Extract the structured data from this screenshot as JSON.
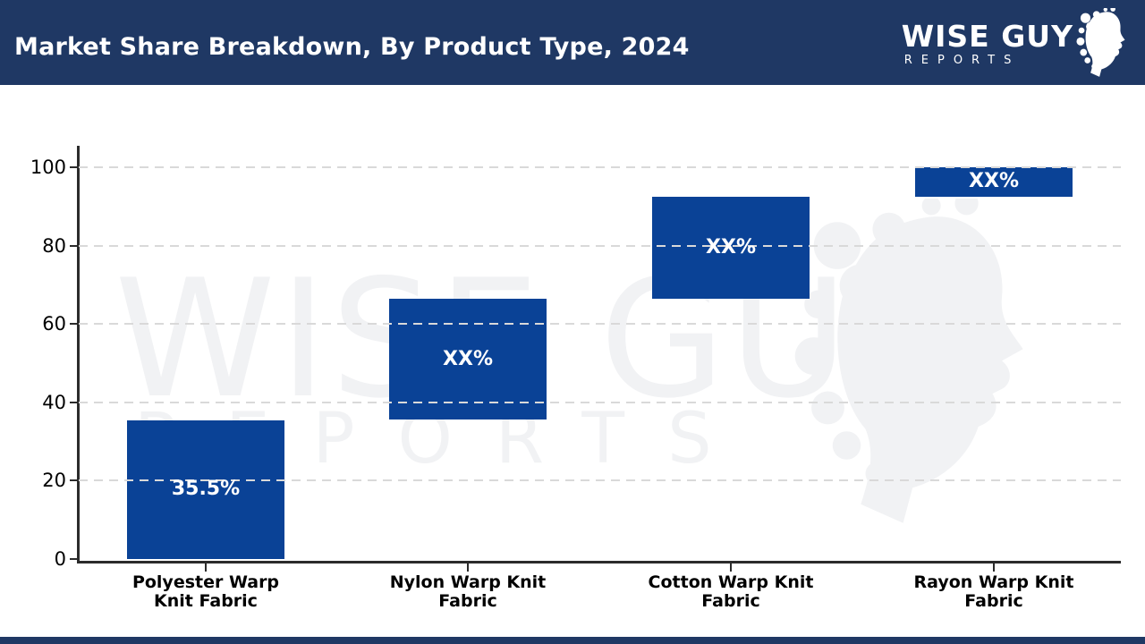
{
  "header": {
    "title": "Market Share Breakdown, By Product Type, 2024",
    "logo": {
      "line1": "WISE GUY",
      "line2": "REPORTS"
    }
  },
  "watermark": {
    "line1": "WISE GUY",
    "line2": "REPORTS"
  },
  "chart_data": {
    "type": "bar",
    "subtype": "floating-waterfall",
    "title": "Market Share Breakdown, By Product Type, 2024",
    "categories": [
      "Polyester Warp Knit Fabric",
      "Nylon Warp Knit Fabric",
      "Cotton Warp Knit Fabric",
      "Rayon Warp Knit Fabric"
    ],
    "category_label_lines": [
      [
        "Polyester Warp",
        "Knit Fabric"
      ],
      [
        "Nylon Warp Knit",
        "Fabric"
      ],
      [
        "Cotton Warp Knit",
        "Fabric"
      ],
      [
        "Rayon Warp Knit",
        "Fabric"
      ]
    ],
    "bars": [
      {
        "category": "Polyester Warp Knit Fabric",
        "label": "35.5%",
        "start": 0,
        "end": 35.5
      },
      {
        "category": "Nylon Warp Knit Fabric",
        "label": "XX%",
        "start": 35.5,
        "end": 66.5
      },
      {
        "category": "Cotton Warp Knit Fabric",
        "label": "XX%",
        "start": 66.5,
        "end": 92.5
      },
      {
        "category": "Rayon Warp Knit Fabric",
        "label": "XX%",
        "start": 92.5,
        "end": 100
      }
    ],
    "yticks": [
      0,
      20,
      40,
      60,
      80,
      100
    ],
    "ylim": [
      0,
      105
    ],
    "xlabel": "",
    "ylabel": "",
    "legend": null,
    "grid": {
      "horizontal": true,
      "style": "dashed",
      "color": "#d9d9d9",
      "drawn_over_bars": true
    },
    "bar_color": "#0a4296"
  },
  "colors": {
    "header_bg": "#1f3864",
    "bar": "#0a4296",
    "bar_label_text": "#ffffff",
    "axis": "#2b2b2b",
    "grid": "#d9d9d9",
    "watermark": "#f1f2f4"
  }
}
